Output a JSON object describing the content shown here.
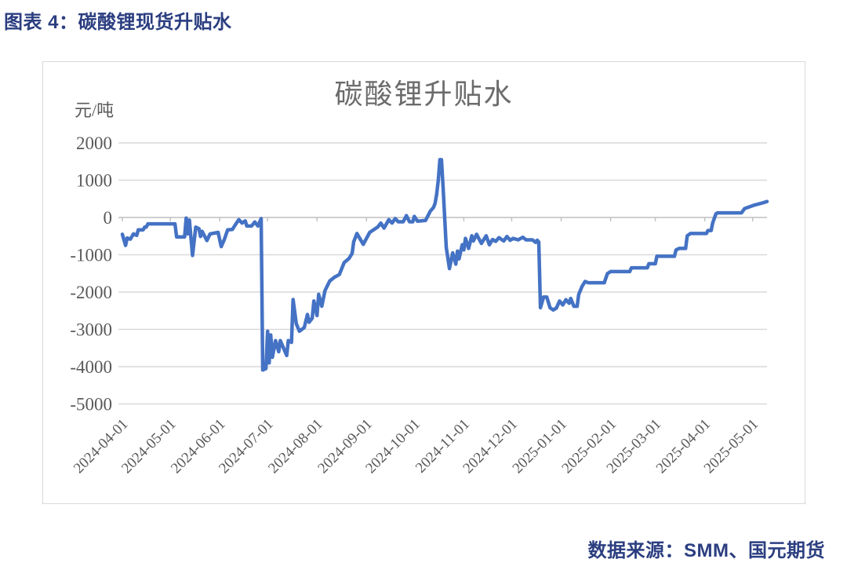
{
  "page": {
    "caption": "图表 4：碳酸锂现货升贴水",
    "source_note": "数据来源：SMM、国元期货"
  },
  "colors": {
    "accent_navy": "#2B3E80",
    "line_blue": "#4472C4",
    "axis_text_gray": "#595959",
    "gridline_gray": "#D9D9D9",
    "axis_line_gray": "#BFBFBF"
  },
  "chart_data": {
    "type": "line",
    "title": "碳酸锂升贴水",
    "unit_label": "元/吨",
    "xlabel": "",
    "ylabel": "元/吨",
    "ylim": [
      -5000,
      2000
    ],
    "yticks": [
      2000,
      1000,
      0,
      -1000,
      -2000,
      -3000,
      -4000,
      -5000
    ],
    "grid": "horizontal",
    "legend_position": "none",
    "x_start_date": "2024-04-01",
    "x_end_date": "2025-05-10",
    "x_total_days": 404,
    "xticks": [
      {
        "day": 0,
        "label": "2024-04-01"
      },
      {
        "day": 30,
        "label": "2024-05-01"
      },
      {
        "day": 61,
        "label": "2024-06-01"
      },
      {
        "day": 91,
        "label": "2024-07-01"
      },
      {
        "day": 122,
        "label": "2024-08-01"
      },
      {
        "day": 153,
        "label": "2024-09-01"
      },
      {
        "day": 183,
        "label": "2024-10-01"
      },
      {
        "day": 214,
        "label": "2024-11-01"
      },
      {
        "day": 244,
        "label": "2024-12-01"
      },
      {
        "day": 275,
        "label": "2025-01-01"
      },
      {
        "day": 306,
        "label": "2025-02-01"
      },
      {
        "day": 334,
        "label": "2025-03-01"
      },
      {
        "day": 365,
        "label": "2025-04-01"
      },
      {
        "day": 395,
        "label": "2025-05-01"
      }
    ],
    "series": [
      {
        "name": "碳酸锂升贴水",
        "color": "#4472C4",
        "points_format": [
          "days_since_2024-04-01",
          "value_yuan_per_ton"
        ],
        "points": [
          [
            0,
            -450
          ],
          [
            2,
            -750
          ],
          [
            3,
            -550
          ],
          [
            5,
            -580
          ],
          [
            7,
            -440
          ],
          [
            9,
            -480
          ],
          [
            10,
            -330
          ],
          [
            13,
            -330
          ],
          [
            14,
            -260
          ],
          [
            15,
            -260
          ],
          [
            16,
            -170
          ],
          [
            33,
            -170
          ],
          [
            34,
            -520
          ],
          [
            39,
            -520
          ],
          [
            40,
            -15
          ],
          [
            41,
            -440
          ],
          [
            42,
            -70
          ],
          [
            44,
            -1020
          ],
          [
            46,
            -260
          ],
          [
            48,
            -300
          ],
          [
            49,
            -510
          ],
          [
            50,
            -370
          ],
          [
            53,
            -620
          ],
          [
            55,
            -440
          ],
          [
            60,
            -400
          ],
          [
            62,
            -780
          ],
          [
            64,
            -580
          ],
          [
            66,
            -330
          ],
          [
            69,
            -320
          ],
          [
            71,
            -180
          ],
          [
            73,
            -60
          ],
          [
            75,
            -150
          ],
          [
            77,
            -90
          ],
          [
            78,
            -230
          ],
          [
            81,
            -230
          ],
          [
            83,
            -120
          ],
          [
            85,
            -230
          ],
          [
            87,
            -30
          ],
          [
            88,
            -4090
          ],
          [
            90,
            -4050
          ],
          [
            91,
            -3050
          ],
          [
            92,
            -3900
          ],
          [
            93,
            -3150
          ],
          [
            94,
            -3750
          ],
          [
            96,
            -3300
          ],
          [
            98,
            -3600
          ],
          [
            99,
            -3300
          ],
          [
            101,
            -3500
          ],
          [
            103,
            -3700
          ],
          [
            104,
            -3300
          ],
          [
            106,
            -3350
          ],
          [
            107,
            -2200
          ],
          [
            109,
            -2850
          ],
          [
            111,
            -3050
          ],
          [
            114,
            -2950
          ],
          [
            116,
            -2600
          ],
          [
            117,
            -2810
          ],
          [
            119,
            -2700
          ],
          [
            120,
            -2240
          ],
          [
            122,
            -2630
          ],
          [
            123,
            -2060
          ],
          [
            125,
            -2380
          ],
          [
            127,
            -1960
          ],
          [
            130,
            -1700
          ],
          [
            133,
            -1600
          ],
          [
            136,
            -1530
          ],
          [
            139,
            -1210
          ],
          [
            142,
            -1100
          ],
          [
            144,
            -965
          ],
          [
            145,
            -650
          ],
          [
            147,
            -430
          ],
          [
            151,
            -720
          ],
          [
            155,
            -400
          ],
          [
            160,
            -260
          ],
          [
            162,
            -150
          ],
          [
            164,
            -285
          ],
          [
            167,
            -60
          ],
          [
            169,
            -150
          ],
          [
            171,
            -30
          ],
          [
            173,
            -115
          ],
          [
            176,
            -115
          ],
          [
            178,
            50
          ],
          [
            180,
            -115
          ],
          [
            182,
            -115
          ],
          [
            183,
            30
          ],
          [
            185,
            -100
          ],
          [
            190,
            -80
          ],
          [
            193,
            170
          ],
          [
            195,
            270
          ],
          [
            196,
            380
          ],
          [
            197,
            625
          ],
          [
            198,
            1010
          ],
          [
            199,
            1550
          ],
          [
            200,
            1550
          ],
          [
            201,
            800
          ],
          [
            202,
            0
          ],
          [
            203,
            -800
          ],
          [
            205,
            -1370
          ],
          [
            207,
            -950
          ],
          [
            209,
            -1250
          ],
          [
            210,
            -900
          ],
          [
            211,
            -1110
          ],
          [
            213,
            -730
          ],
          [
            214,
            -870
          ],
          [
            215,
            -560
          ],
          [
            217,
            -830
          ],
          [
            219,
            -490
          ],
          [
            220,
            -630
          ],
          [
            222,
            -450
          ],
          [
            225,
            -695
          ],
          [
            228,
            -490
          ],
          [
            230,
            -730
          ],
          [
            232,
            -590
          ],
          [
            234,
            -640
          ],
          [
            236,
            -540
          ],
          [
            239,
            -630
          ],
          [
            241,
            -510
          ],
          [
            243,
            -610
          ],
          [
            245,
            -560
          ],
          [
            248,
            -600
          ],
          [
            251,
            -530
          ],
          [
            253,
            -600
          ],
          [
            257,
            -600
          ],
          [
            259,
            -670
          ],
          [
            260,
            -610
          ],
          [
            261,
            -660
          ],
          [
            262,
            -2420
          ],
          [
            264,
            -2135
          ],
          [
            266,
            -2135
          ],
          [
            268,
            -2420
          ],
          [
            270,
            -2480
          ],
          [
            272,
            -2430
          ],
          [
            274,
            -2240
          ],
          [
            276,
            -2345
          ],
          [
            278,
            -2205
          ],
          [
            280,
            -2300
          ],
          [
            281,
            -2170
          ],
          [
            283,
            -2380
          ],
          [
            285,
            -2380
          ],
          [
            286,
            -2065
          ],
          [
            288,
            -1855
          ],
          [
            290,
            -1715
          ],
          [
            292,
            -1750
          ],
          [
            302,
            -1750
          ],
          [
            304,
            -1505
          ],
          [
            306,
            -1450
          ],
          [
            318,
            -1450
          ],
          [
            319,
            -1350
          ],
          [
            329,
            -1350
          ],
          [
            330,
            -1240
          ],
          [
            334,
            -1240
          ],
          [
            335,
            -1040
          ],
          [
            346,
            -1040
          ],
          [
            347,
            -870
          ],
          [
            349,
            -830
          ],
          [
            353,
            -830
          ],
          [
            354,
            -490
          ],
          [
            356,
            -430
          ],
          [
            366,
            -430
          ],
          [
            367,
            -350
          ],
          [
            369,
            -350
          ],
          [
            370,
            -140
          ],
          [
            372,
            100
          ],
          [
            373,
            125
          ],
          [
            388,
            125
          ],
          [
            390,
            240
          ],
          [
            396,
            330
          ],
          [
            402,
            400
          ],
          [
            404,
            430
          ]
        ]
      }
    ]
  }
}
